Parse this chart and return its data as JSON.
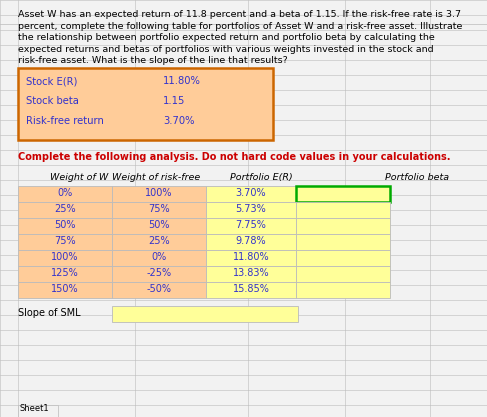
{
  "desc_lines": [
    "Asset W has an expected return of 11.8 percent and a beta of 1.15. If the risk-free rate is 3.7",
    "percent, complete the following table for portfolios of Asset W and a risk-free asset. Illustrate",
    "the relationship between portfolio expected return and portfolio beta by calculating the",
    "expected returns and betas of portfolios with various weights invested in the stock and",
    "risk-free asset. What is the slope of the line that results?"
  ],
  "info_labels": [
    "Stock E(R)",
    "Stock beta",
    "Risk-free return"
  ],
  "info_values": [
    "11.80%",
    "1.15",
    "3.70%"
  ],
  "instruction_text": "Complete the following analysis. Do not hard code values in your calculations.",
  "col_headers": [
    "Weight of W",
    "Weight of risk-free",
    "Portfolio E(R)",
    "Portfolio beta"
  ],
  "table_data": [
    [
      "0%",
      "100%",
      "3.70%",
      ""
    ],
    [
      "25%",
      "75%",
      "5.73%",
      ""
    ],
    [
      "50%",
      "50%",
      "7.75%",
      ""
    ],
    [
      "75%",
      "25%",
      "9.78%",
      ""
    ],
    [
      "100%",
      "0%",
      "11.80%",
      ""
    ],
    [
      "125%",
      "-25%",
      "13.83%",
      ""
    ],
    [
      "150%",
      "-50%",
      "15.85%",
      ""
    ]
  ],
  "slope_label": "Slope of SML",
  "orange_color": "#FFCC99",
  "yellow_color": "#FFFF99",
  "green_border": "#00AA00",
  "red_text": "#CC0000",
  "blue_text": "#3333CC",
  "border_orange": "#CC6600",
  "bg_color": "#F2F2F2",
  "grid_color": "#BBBBBB",
  "sheet_tab": "Sheet1"
}
